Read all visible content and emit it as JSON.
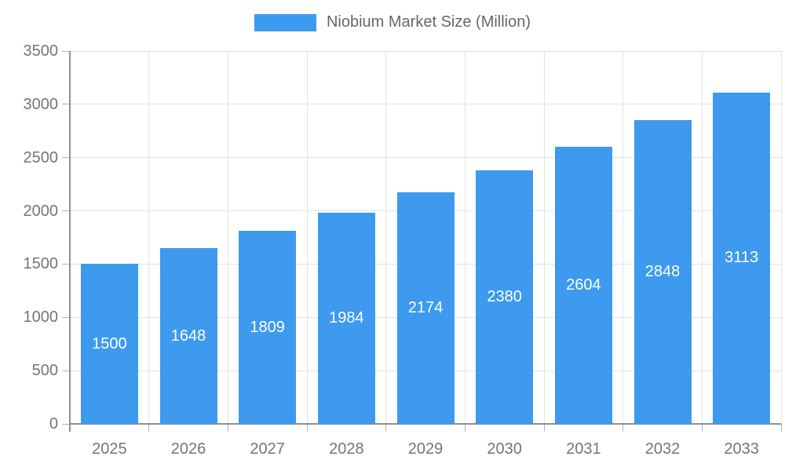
{
  "legend": {
    "label": "Niobium Market Size (Million)"
  },
  "colors": {
    "bar": "#3d9aee",
    "grid": "#e3e3e3",
    "axis": "#909090",
    "tick_mark": "#b3b3b3",
    "axis_label": "#757575",
    "legend_text": "#666666",
    "value_label": "#ffffff",
    "background": "#ffffff"
  },
  "chart_data": {
    "type": "bar",
    "title": "Niobium Market Size (Million)",
    "categories": [
      "2025",
      "2026",
      "2027",
      "2028",
      "2029",
      "2030",
      "2031",
      "2032",
      "2033"
    ],
    "values": [
      1500,
      1648,
      1809,
      1984,
      2174,
      2380,
      2604,
      2848,
      3113
    ],
    "xlabel": "",
    "ylabel": "",
    "ylim": [
      0,
      3500
    ],
    "yticks": [
      0,
      500,
      1000,
      1500,
      2000,
      2500,
      3000,
      3500
    ],
    "grid": true,
    "legend_position": "top",
    "value_labels": "centered-white-inside-bars"
  }
}
